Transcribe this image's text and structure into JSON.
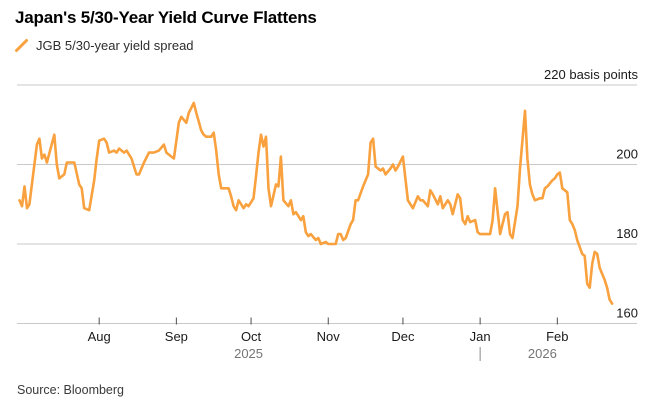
{
  "header": {
    "title": "Japan's 5/30-Year Yield Curve Flattens",
    "legend": {
      "icon": "line-slash-icon",
      "label": "JGB 5/30-year yield spread"
    }
  },
  "footer": {
    "source": "Source: Bloomberg"
  },
  "colors": {
    "line": "#F8A13E",
    "grid": "#C9C9C9",
    "axis_text": "#1A1A1A",
    "muted_text": "#757575",
    "tick": "#4D4D4D",
    "divider": "#8A8A8A",
    "background": "#FFFFFF"
  },
  "chart_data": {
    "type": "line",
    "title": "Japan's 5/30-Year Yield Curve Flattens",
    "unit": "basis points",
    "grid": true,
    "legend_position": "top-left",
    "x_domain": [
      "2025-06-29",
      "2026-03-05"
    ],
    "ylim": [
      160,
      220
    ],
    "yticks": [
      {
        "value": 220,
        "label": "220 basis points"
      },
      {
        "value": 200,
        "label": "200"
      },
      {
        "value": 180,
        "label": "180"
      },
      {
        "value": 160,
        "label": "160"
      }
    ],
    "xticks": [
      {
        "date": "2025-08-01",
        "label": "Aug"
      },
      {
        "date": "2025-09-01",
        "label": "Sep"
      },
      {
        "date": "2025-10-01",
        "label": "Oct"
      },
      {
        "date": "2025-11-01",
        "label": "Nov"
      },
      {
        "date": "2025-12-01",
        "label": "Dec"
      },
      {
        "date": "2026-01-01",
        "label": "Jan"
      },
      {
        "date": "2026-02-01",
        "label": "Feb"
      }
    ],
    "year_labels": [
      {
        "date": "2025-09-30",
        "label": "2025"
      },
      {
        "date": "2026-01-26",
        "label": "2026"
      }
    ],
    "year_divider_date": "2026-01-01",
    "series": [
      {
        "name": "JGB 5/30-year yield spread",
        "points": [
          [
            "2025-06-30",
            191
          ],
          [
            "2025-07-01",
            189.5
          ],
          [
            "2025-07-02",
            194.5
          ],
          [
            "2025-07-03",
            189
          ],
          [
            "2025-07-04",
            190
          ],
          [
            "2025-07-07",
            205
          ],
          [
            "2025-07-08",
            206.5
          ],
          [
            "2025-07-09",
            201.5
          ],
          [
            "2025-07-10",
            202.5
          ],
          [
            "2025-07-11",
            200.5
          ],
          [
            "2025-07-14",
            207.5
          ],
          [
            "2025-07-15",
            200
          ],
          [
            "2025-07-16",
            196.5
          ],
          [
            "2025-07-18",
            197.5
          ],
          [
            "2025-07-19",
            200.5
          ],
          [
            "2025-07-21",
            200.5
          ],
          [
            "2025-07-22",
            200.5
          ],
          [
            "2025-07-24",
            195
          ],
          [
            "2025-07-25",
            194
          ],
          [
            "2025-07-26",
            189
          ],
          [
            "2025-07-28",
            188.5
          ],
          [
            "2025-07-30",
            196
          ],
          [
            "2025-07-31",
            201.5
          ],
          [
            "2025-08-01",
            206
          ],
          [
            "2025-08-03",
            206.5
          ],
          [
            "2025-08-04",
            205.5
          ],
          [
            "2025-08-05",
            203
          ],
          [
            "2025-08-07",
            203.5
          ],
          [
            "2025-08-08",
            203
          ],
          [
            "2025-08-09",
            204
          ],
          [
            "2025-08-11",
            203
          ],
          [
            "2025-08-12",
            203.5
          ],
          [
            "2025-08-14",
            201.5
          ],
          [
            "2025-08-16",
            197.5
          ],
          [
            "2025-08-17",
            197.5
          ],
          [
            "2025-08-19",
            200.5
          ],
          [
            "2025-08-21",
            203
          ],
          [
            "2025-08-23",
            203
          ],
          [
            "2025-08-25",
            203.5
          ],
          [
            "2025-08-27",
            205
          ],
          [
            "2025-08-28",
            203
          ],
          [
            "2025-08-30",
            202
          ],
          [
            "2025-08-31",
            201.5
          ],
          [
            "2025-09-01",
            206
          ],
          [
            "2025-09-02",
            210.5
          ],
          [
            "2025-09-03",
            212
          ],
          [
            "2025-09-05",
            210.5
          ],
          [
            "2025-09-06",
            213
          ],
          [
            "2025-09-08",
            215.5
          ],
          [
            "2025-09-09",
            213
          ],
          [
            "2025-09-11",
            208.5
          ],
          [
            "2025-09-12",
            207.5
          ],
          [
            "2025-09-13",
            207
          ],
          [
            "2025-09-15",
            207
          ],
          [
            "2025-09-16",
            208
          ],
          [
            "2025-09-17",
            203.5
          ],
          [
            "2025-09-18",
            197.5
          ],
          [
            "2025-09-19",
            194
          ],
          [
            "2025-09-21",
            194
          ],
          [
            "2025-09-22",
            194
          ],
          [
            "2025-09-23",
            192
          ],
          [
            "2025-09-24",
            189.5
          ],
          [
            "2025-09-25",
            188.5
          ],
          [
            "2025-09-26",
            191
          ],
          [
            "2025-09-28",
            189
          ],
          [
            "2025-09-29",
            190
          ],
          [
            "2025-09-30",
            189.5
          ],
          [
            "2025-10-02",
            191.5
          ],
          [
            "2025-10-03",
            197
          ],
          [
            "2025-10-04",
            203
          ],
          [
            "2025-10-05",
            207.5
          ],
          [
            "2025-10-06",
            204.5
          ],
          [
            "2025-10-07",
            207
          ],
          [
            "2025-10-08",
            194
          ],
          [
            "2025-10-09",
            189.5
          ],
          [
            "2025-10-11",
            195
          ],
          [
            "2025-10-12",
            194.5
          ],
          [
            "2025-10-13",
            202
          ],
          [
            "2025-10-14",
            191
          ],
          [
            "2025-10-16",
            189.5
          ],
          [
            "2025-10-17",
            191
          ],
          [
            "2025-10-18",
            187.5
          ],
          [
            "2025-10-19",
            188
          ],
          [
            "2025-10-21",
            186
          ],
          [
            "2025-10-22",
            187
          ],
          [
            "2025-10-23",
            183
          ],
          [
            "2025-10-24",
            182
          ],
          [
            "2025-10-25",
            182.5
          ],
          [
            "2025-10-27",
            181
          ],
          [
            "2025-10-28",
            181.5
          ],
          [
            "2025-10-29",
            180
          ],
          [
            "2025-10-31",
            180.5
          ],
          [
            "2025-11-01",
            180
          ],
          [
            "2025-11-02",
            180
          ],
          [
            "2025-11-04",
            180
          ],
          [
            "2025-11-05",
            182.5
          ],
          [
            "2025-11-06",
            182.5
          ],
          [
            "2025-11-07",
            181
          ],
          [
            "2025-11-08",
            181.5
          ],
          [
            "2025-11-10",
            185
          ],
          [
            "2025-11-11",
            186
          ],
          [
            "2025-11-12",
            191
          ],
          [
            "2025-11-13",
            191
          ],
          [
            "2025-11-15",
            194.5
          ],
          [
            "2025-11-16",
            196
          ],
          [
            "2025-11-17",
            197.5
          ],
          [
            "2025-11-18",
            205.5
          ],
          [
            "2025-11-19",
            206.5
          ],
          [
            "2025-11-20",
            199.5
          ],
          [
            "2025-11-22",
            198.5
          ],
          [
            "2025-11-23",
            199
          ],
          [
            "2025-11-24",
            197.5
          ],
          [
            "2025-11-26",
            199
          ],
          [
            "2025-11-27",
            200
          ],
          [
            "2025-11-28",
            198.5
          ],
          [
            "2025-11-29",
            199.5
          ],
          [
            "2025-12-01",
            202
          ],
          [
            "2025-12-03",
            191
          ],
          [
            "2025-12-04",
            190
          ],
          [
            "2025-12-05",
            189
          ],
          [
            "2025-12-07",
            192
          ],
          [
            "2025-12-08",
            191
          ],
          [
            "2025-12-09",
            191
          ],
          [
            "2025-12-11",
            189.5
          ],
          [
            "2025-12-12",
            193.5
          ],
          [
            "2025-12-13",
            192.5
          ],
          [
            "2025-12-15",
            190
          ],
          [
            "2025-12-16",
            192
          ],
          [
            "2025-12-17",
            189
          ],
          [
            "2025-12-19",
            191
          ],
          [
            "2025-12-20",
            190
          ],
          [
            "2025-12-21",
            187.5
          ],
          [
            "2025-12-23",
            192.5
          ],
          [
            "2025-12-24",
            191.5
          ],
          [
            "2025-12-25",
            186
          ],
          [
            "2025-12-26",
            185
          ],
          [
            "2025-12-27",
            187
          ],
          [
            "2025-12-28",
            185.5
          ],
          [
            "2025-12-30",
            186
          ],
          [
            "2025-12-31",
            183
          ],
          [
            "2026-01-01",
            182.5
          ],
          [
            "2026-01-02",
            182.5
          ],
          [
            "2026-01-03",
            182.5
          ],
          [
            "2026-01-05",
            182.5
          ],
          [
            "2026-01-06",
            186
          ],
          [
            "2026-01-07",
            194
          ],
          [
            "2026-01-09",
            182.5
          ],
          [
            "2026-01-11",
            187.5
          ],
          [
            "2026-01-12",
            188
          ],
          [
            "2026-01-13",
            182.5
          ],
          [
            "2026-01-14",
            181.5
          ],
          [
            "2026-01-16",
            189.5
          ],
          [
            "2026-01-17",
            199
          ],
          [
            "2026-01-19",
            213.5
          ],
          [
            "2026-01-20",
            201.5
          ],
          [
            "2026-01-21",
            195
          ],
          [
            "2026-01-22",
            192.5
          ],
          [
            "2026-01-23",
            191
          ],
          [
            "2026-01-25",
            191.5
          ],
          [
            "2026-01-26",
            191.5
          ],
          [
            "2026-01-27",
            194
          ],
          [
            "2026-01-28",
            194.5
          ],
          [
            "2026-01-30",
            196
          ],
          [
            "2026-01-31",
            196.5
          ],
          [
            "2026-02-01",
            197.5
          ],
          [
            "2026-02-02",
            198
          ],
          [
            "2026-02-03",
            194
          ],
          [
            "2026-02-05",
            193
          ],
          [
            "2026-02-06",
            186
          ],
          [
            "2026-02-07",
            185
          ],
          [
            "2026-02-08",
            183.5
          ],
          [
            "2026-02-09",
            181
          ],
          [
            "2026-02-11",
            177.5
          ],
          [
            "2026-02-12",
            177
          ],
          [
            "2026-02-13",
            170
          ],
          [
            "2026-02-14",
            169
          ],
          [
            "2026-02-15",
            175
          ],
          [
            "2026-02-16",
            178
          ],
          [
            "2026-02-17",
            177.5
          ],
          [
            "2026-02-18",
            174
          ],
          [
            "2026-02-20",
            171
          ],
          [
            "2026-02-21",
            169
          ],
          [
            "2026-02-22",
            166
          ],
          [
            "2026-02-23",
            165
          ]
        ]
      }
    ]
  }
}
